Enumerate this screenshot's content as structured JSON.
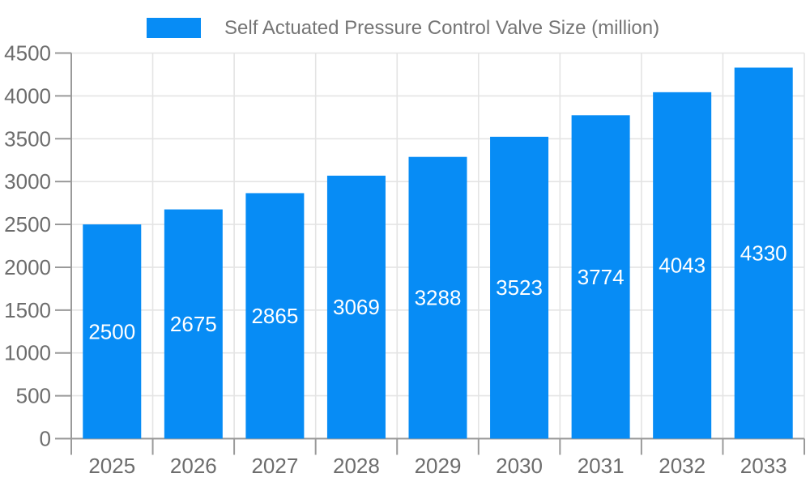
{
  "chart_data": {
    "type": "bar",
    "title": "Self Actuated Pressure Control Valve Size (million)",
    "categories": [
      "2025",
      "2026",
      "2027",
      "2028",
      "2029",
      "2030",
      "2031",
      "2032",
      "2033"
    ],
    "values": [
      2500,
      2675,
      2865,
      3069,
      3288,
      3523,
      3774,
      4043,
      4330
    ],
    "xlabel": "",
    "ylabel": "",
    "ylim": [
      0,
      4500
    ],
    "ytick_step": 500,
    "grid": true,
    "legend_position": "top",
    "value_label_position": "inside-center",
    "colors": {
      "bar": "#078cf5",
      "value_label": "#ffffff",
      "axis": "#9a9a9a",
      "grid": "#e4e4e4",
      "tick_label": "#6d6d6d",
      "legend_text": "#757575",
      "background": "#ffffff"
    }
  }
}
